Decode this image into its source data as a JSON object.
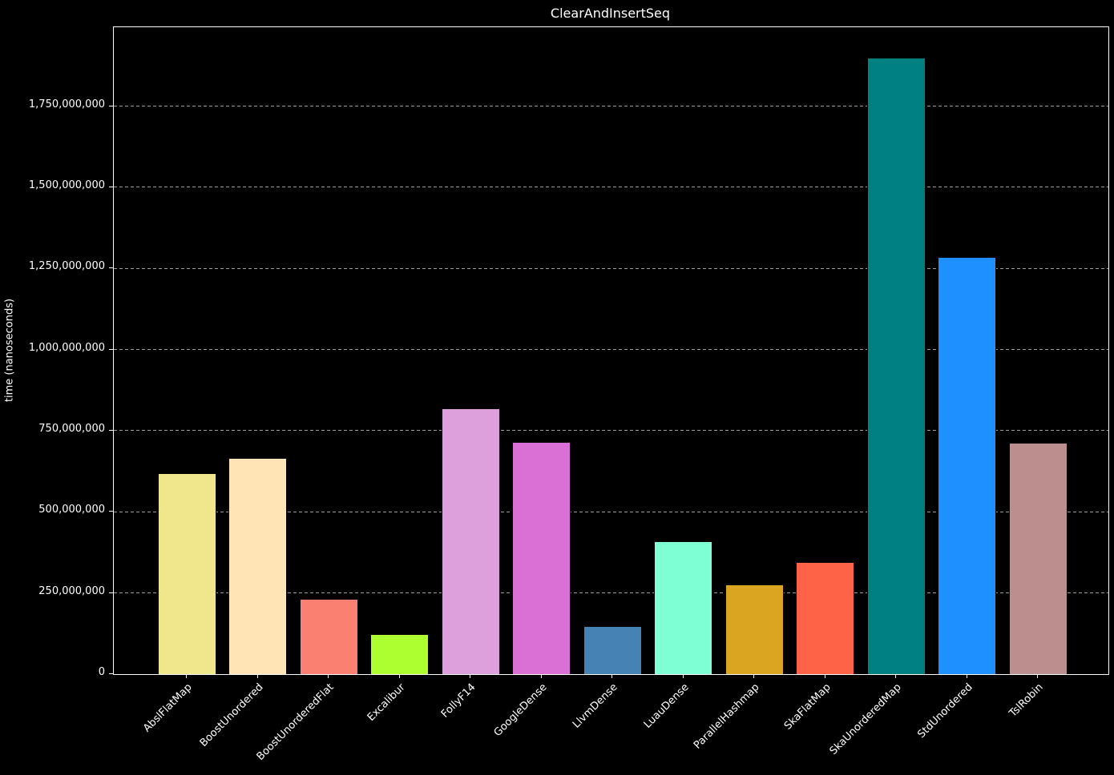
{
  "page": {
    "background": "#000000",
    "text_color": "#ffffff"
  },
  "chart_data": {
    "type": "bar",
    "title": "ClearAndInsertSeq",
    "xlabel": "",
    "ylabel": "time (nanoseconds)",
    "categories": [
      "AbslFlatMap",
      "BoostUnordered",
      "BoostUnorderedFlat",
      "Excalibur",
      "FollyF14",
      "GoogleDense",
      "LlvmDense",
      "LuauDense",
      "ParallelHashmap",
      "SkaFlatMap",
      "SkaUnorderedMap",
      "StdUnordered",
      "TslRobin"
    ],
    "values": [
      618000000,
      665000000,
      232000000,
      123000000,
      820000000,
      715000000,
      148000000,
      410000000,
      276000000,
      345000000,
      1900000000,
      1285000000,
      712000000
    ],
    "bar_colors": [
      "#f0e68c",
      "#ffe4b5",
      "#fa8072",
      "#adff2f",
      "#dda0dd",
      "#da70d6",
      "#4682b4",
      "#7fffd4",
      "#daa520",
      "#ff6347",
      "#008080",
      "#1e90ff",
      "#bc8f8f"
    ],
    "ylim": [
      0,
      1993000000
    ],
    "yticks": {
      "values": [
        0,
        250000000,
        500000000,
        750000000,
        1000000000,
        1250000000,
        1500000000,
        1750000000
      ],
      "labels": [
        "0",
        "250,000,000",
        "500,000,000",
        "750,000,000",
        "1,000,000,000",
        "1,250,000,000",
        "1,500,000,000",
        "1,750,000,000"
      ]
    },
    "grid": "horizontal dashed",
    "legend": "none",
    "colors": {
      "background": "#000000",
      "text": "#ffffff",
      "grid": "#9f9f9f",
      "spine": "#ffffff",
      "bar_edge": "#000000"
    }
  }
}
